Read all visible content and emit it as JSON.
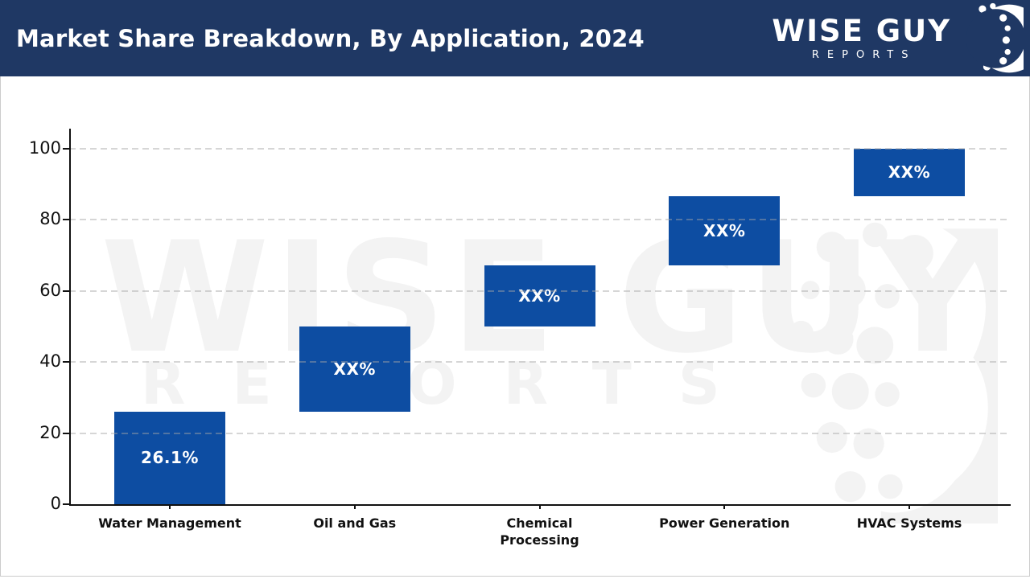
{
  "header": {
    "title": "Market Share Breakdown, By Application, 2024",
    "logo": {
      "line1": "WISE GUY",
      "line2": "REPORTS"
    },
    "bg_color": "#1f3864"
  },
  "watermark": {
    "line1": "WISE GUY",
    "line2": "REPORTS"
  },
  "chart_data": {
    "type": "bar",
    "subtype": "waterfall",
    "title": "Market Share Breakdown, By Application, 2024",
    "xlabel": "",
    "ylabel": "",
    "ylim": [
      0,
      100
    ],
    "yticks": [
      0,
      20,
      40,
      60,
      80,
      100
    ],
    "grid": "horizontal-dashed",
    "legend": "none",
    "bar_color": "#0d4da2",
    "value_label_color": "#ffffff",
    "categories": [
      "Water Management",
      "Oil and Gas",
      "Chemical Processing",
      "Power Generation",
      "HVAC Systems"
    ],
    "category_display": [
      [
        "Water Management"
      ],
      [
        "Oil and Gas"
      ],
      [
        "Chemical",
        "Processing"
      ],
      [
        "Power Generation"
      ],
      [
        "HVAC Systems"
      ]
    ],
    "segments": [
      {
        "category": "Water Management",
        "start": 0,
        "end": 26.1,
        "label": "26.1%"
      },
      {
        "category": "Oil and Gas",
        "start": 26.1,
        "end": 50,
        "label": "XX%"
      },
      {
        "category": "Chemical Processing",
        "start": 50,
        "end": 67.3,
        "label": "XX%"
      },
      {
        "category": "Power Generation",
        "start": 67.3,
        "end": 86.7,
        "label": "XX%"
      },
      {
        "category": "HVAC Systems",
        "start": 86.7,
        "end": 100,
        "label": "XX%"
      }
    ]
  }
}
